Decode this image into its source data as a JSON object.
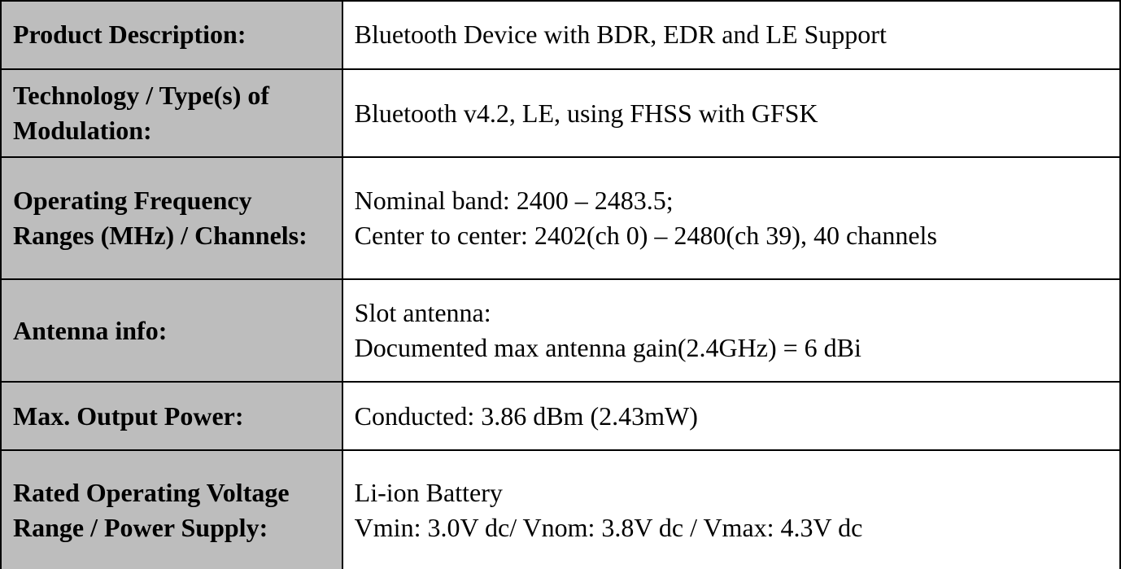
{
  "table": {
    "label_bg": "#bdbdbd",
    "value_bg": "#ffffff",
    "border_color": "#000000",
    "font_family": "Times New Roman",
    "label_font_weight": "bold",
    "value_font_weight": "normal",
    "font_size_pt": 24,
    "rows": [
      {
        "label": "Product Description:",
        "value": "Bluetooth Device with BDR, EDR and LE Support"
      },
      {
        "label": "Technology / Type(s) of Modulation:",
        "value": "Bluetooth v4.2, LE, using FHSS with GFSK"
      },
      {
        "label": "Operating Frequency Ranges (MHz) / Channels:",
        "value_line1": "Nominal band: 2400 – 2483.5;",
        "value_line2": "Center to center: 2402(ch 0) – 2480(ch 39), 40 channels"
      },
      {
        "label": "Antenna info:",
        "value_line1": "Slot antenna:",
        "value_line2": "Documented max antenna gain(2.4GHz)  =  6 dBi"
      },
      {
        "label": "Max. Output Power:",
        "value": "Conducted: 3.86 dBm (2.43mW)"
      },
      {
        "label": "Rated Operating Voltage Range / Power Supply:",
        "value_line1": "Li-ion Battery",
        "value_line2": "Vmin: 3.0V dc/  Vnom: 3.8V dc / Vmax: 4.3V dc"
      }
    ]
  }
}
